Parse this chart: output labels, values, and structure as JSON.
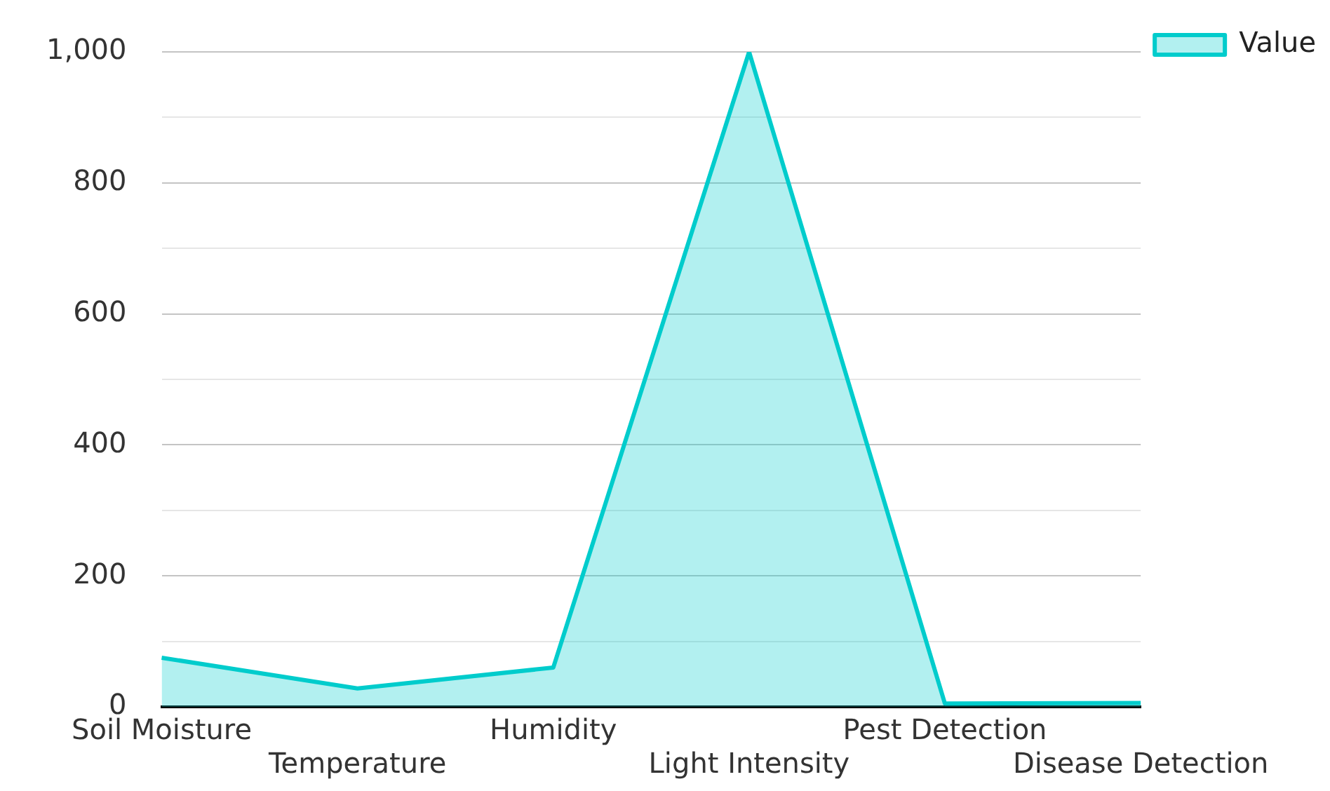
{
  "chart_data": {
    "type": "area",
    "categories": [
      "Soil Moisture",
      "Temperature",
      "Humidity",
      "Light Intensity",
      "Pest Detection",
      "Disease Detection"
    ],
    "series": [
      {
        "name": "Value",
        "color": "#00cccc",
        "values": [
          75,
          28,
          60,
          1000,
          5,
          6
        ]
      }
    ],
    "ylim": [
      0,
      1000
    ],
    "yticks": [
      0,
      {
        "value": 100,
        "label": null
      },
      200,
      {
        "value": 300,
        "label": null
      },
      400,
      {
        "value": 500,
        "label": null
      },
      600,
      {
        "value": 700,
        "label": null
      },
      800,
      {
        "value": 900,
        "label": null
      },
      {
        "value": 1000,
        "label": "1,000"
      }
    ],
    "grid": "y",
    "legend": "top right"
  }
}
